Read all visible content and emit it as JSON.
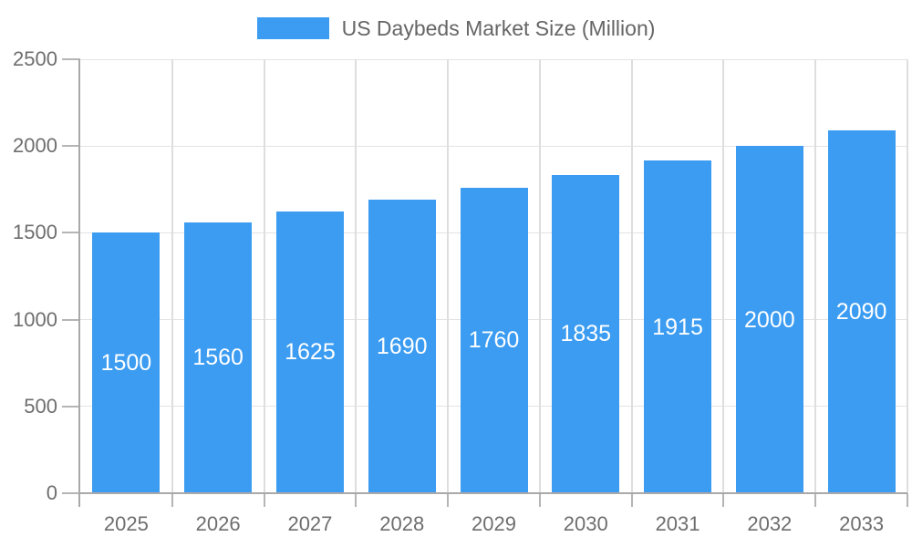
{
  "legend": {
    "label": "US Daybeds Market Size (Million)"
  },
  "chart_data": {
    "type": "bar",
    "title": "US Daybeds Market Size (Million)",
    "categories": [
      "2025",
      "2026",
      "2027",
      "2028",
      "2029",
      "2030",
      "2031",
      "2032",
      "2033"
    ],
    "values": [
      1500,
      1560,
      1625,
      1690,
      1760,
      1835,
      1915,
      2000,
      2090
    ],
    "series": [
      {
        "name": "US Daybeds Market Size (Million)",
        "values": [
          1500,
          1560,
          1625,
          1690,
          1760,
          1835,
          1915,
          2000,
          2090
        ]
      }
    ],
    "xlabel": "",
    "ylabel": "",
    "ylim": [
      0,
      2500
    ],
    "yticks": [
      0,
      500,
      1000,
      1500,
      2000,
      2500
    ],
    "grid": true,
    "legend_position": "top",
    "bar_color": "#3B9CF2",
    "bar_label_color": "#ffffff",
    "axis_text_color": "#6e6e6e"
  }
}
